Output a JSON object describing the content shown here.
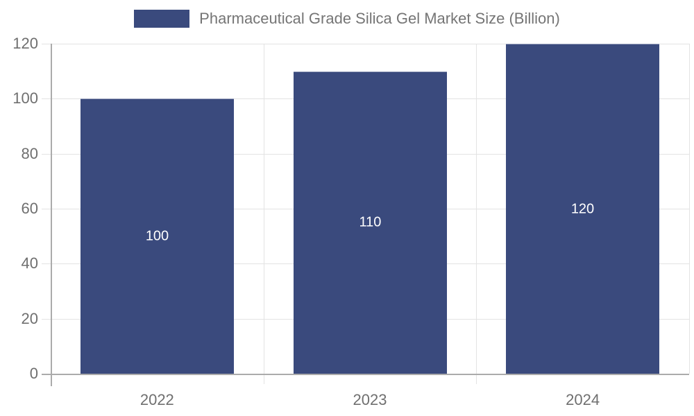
{
  "chart_data": {
    "type": "bar",
    "title": "Pharmaceutical Grade Silica Gel Market Size (Billion)",
    "legend": {
      "label": "Pharmaceutical Grade Silica Gel Market Size (Billion)",
      "position": "top-center"
    },
    "categories": [
      "2022",
      "2023",
      "2024"
    ],
    "values": [
      100,
      110,
      120
    ],
    "bar_labels": [
      "100",
      "110",
      "120"
    ],
    "xlabel": "",
    "ylabel": "",
    "ylim": [
      0,
      120
    ],
    "yticks": [
      0,
      20,
      40,
      60,
      80,
      100,
      120
    ],
    "grid": true,
    "colors": {
      "bar": "#3A4A7D",
      "bar_label": "#FFFFFF",
      "legend_text": "#757575",
      "tick_label": "#6F6F6F",
      "gridline": "#E3E3E3",
      "axis_line": "#ABABAB"
    }
  }
}
